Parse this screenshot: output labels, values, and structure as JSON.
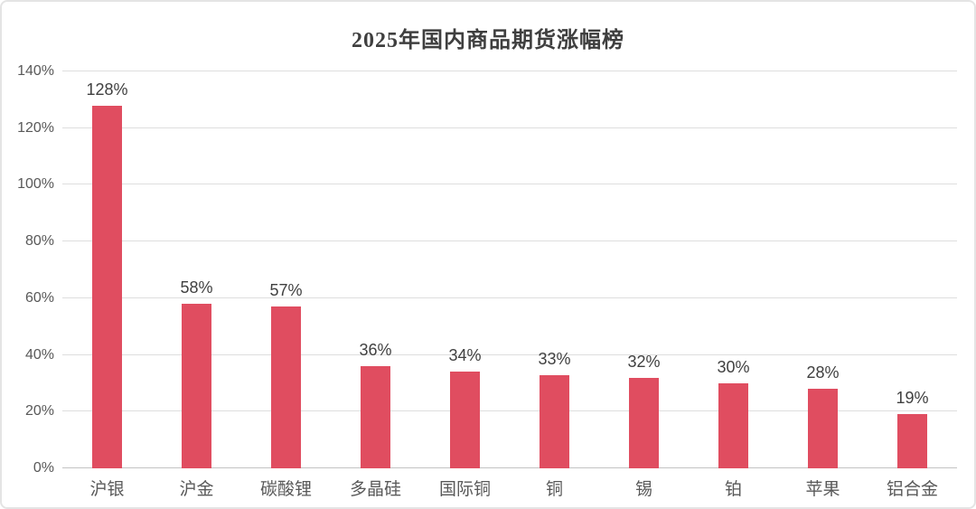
{
  "chart_data": {
    "type": "bar",
    "title": "2025年国内商品期货涨幅榜",
    "categories": [
      "沪银",
      "沪金",
      "碳酸锂",
      "多晶硅",
      "国际铜",
      "铜",
      "锡",
      "铂",
      "苹果",
      "铝合金"
    ],
    "values": [
      128,
      58,
      57,
      36,
      34,
      33,
      32,
      30,
      28,
      19
    ],
    "value_labels": [
      "128%",
      "58%",
      "57%",
      "36%",
      "34%",
      "33%",
      "32%",
      "30%",
      "28%",
      "19%"
    ],
    "xlabel": "",
    "ylabel": "",
    "ylim": [
      0,
      140
    ],
    "ytick_step": 20,
    "ytick_labels": [
      "0%",
      "20%",
      "40%",
      "60%",
      "80%",
      "100%",
      "120%",
      "140%"
    ],
    "grid": true,
    "legend_position": "none",
    "colors": {
      "bar": "#e04d60",
      "title": "#3f3f3f",
      "value_label": "#404040",
      "tick_label": "#595959",
      "gridline": "#dedede",
      "axis_line": "#c3c3c3",
      "card_border": "#e4e4e4",
      "background": "#ffffff"
    }
  }
}
